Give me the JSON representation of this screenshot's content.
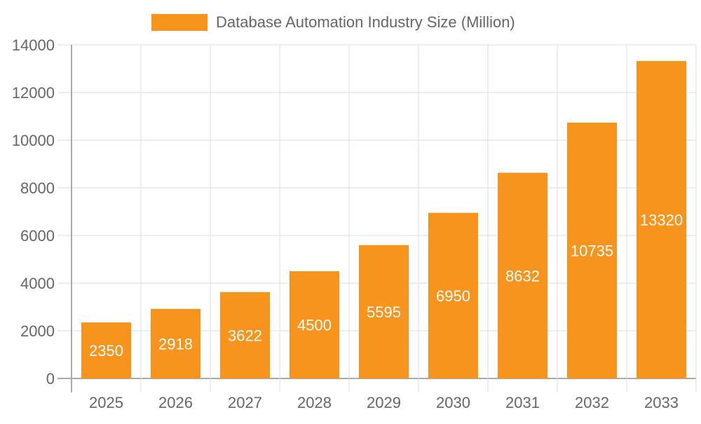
{
  "chart_data": {
    "type": "bar",
    "title": "",
    "xlabel": "",
    "ylabel": "",
    "categories": [
      "2025",
      "2026",
      "2027",
      "2028",
      "2029",
      "2030",
      "2031",
      "2032",
      "2033"
    ],
    "series": [
      {
        "name": "Database Automation Industry Size (Million)",
        "values": [
          2350,
          2918,
          3622,
          4500,
          5595,
          6950,
          8632,
          10735,
          13320
        ],
        "color": "#f7941e"
      }
    ],
    "ylim": [
      0,
      14000
    ],
    "yticks": [
      0,
      2000,
      4000,
      6000,
      8000,
      10000,
      12000,
      14000
    ],
    "grid": true,
    "legend_position": "top",
    "data_labels": true,
    "data_label_color": "#ffffff"
  }
}
